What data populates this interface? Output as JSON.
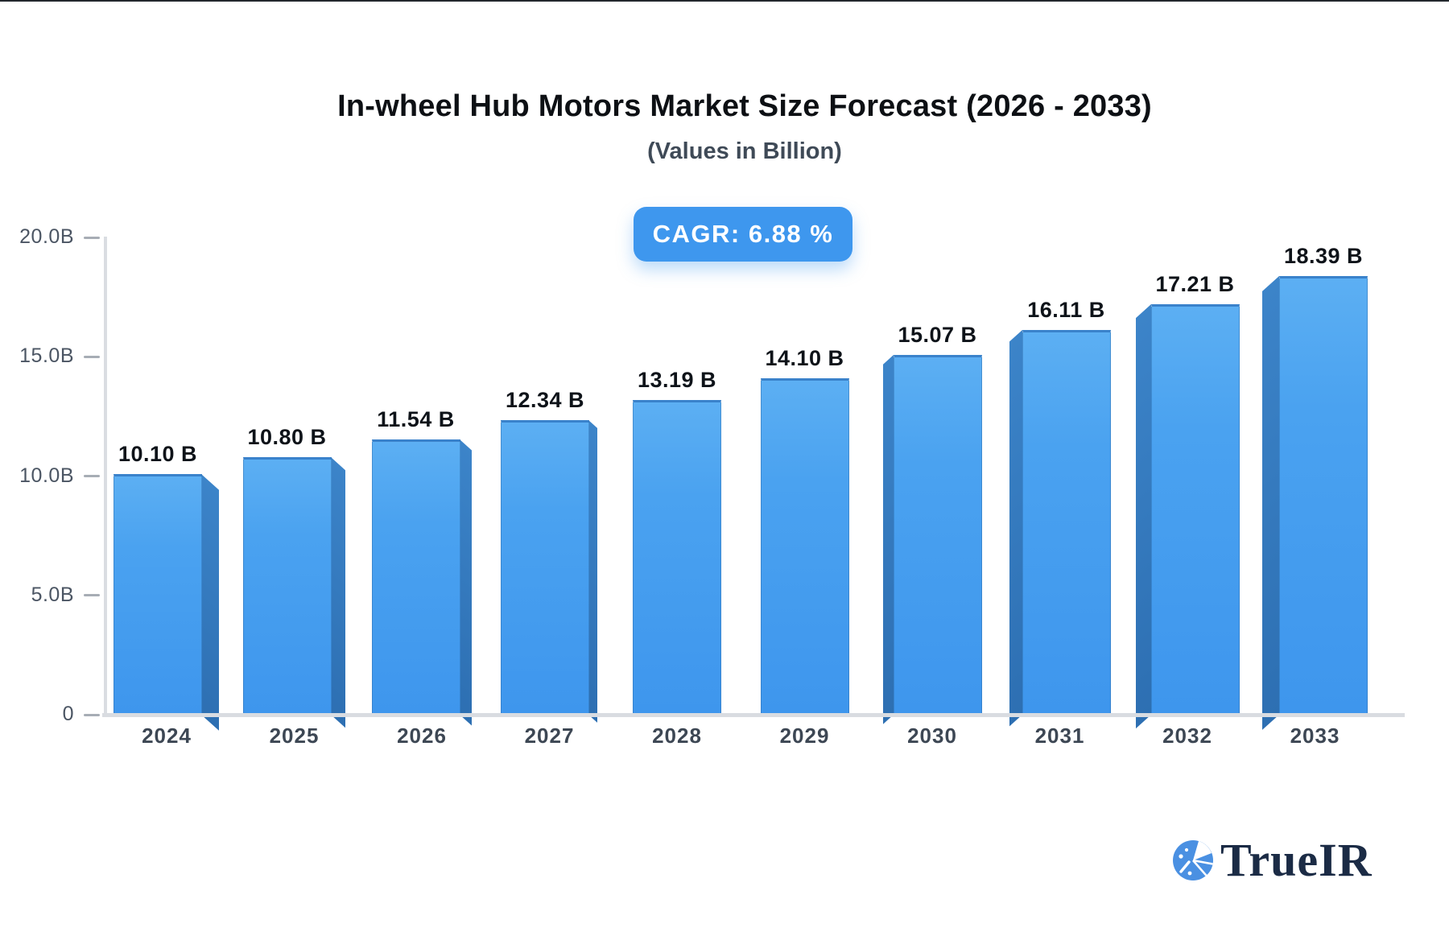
{
  "header": {
    "title": "In-wheel Hub Motors Market Size Forecast (2026 - 2033)",
    "subtitle": "(Values in Billion)",
    "cagr_label": "CAGR: 6.88 %"
  },
  "chart_data": {
    "type": "bar",
    "title": "In-wheel Hub Motors Market Size Forecast (2026 - 2033)",
    "subtitle": "(Values in Billion)",
    "cagr_percent": 6.88,
    "categories": [
      "2024",
      "2025",
      "2026",
      "2027",
      "2028",
      "2029",
      "2030",
      "2031",
      "2032",
      "2033"
    ],
    "values": [
      10.1,
      10.8,
      11.54,
      12.34,
      13.19,
      14.1,
      15.07,
      16.11,
      17.21,
      18.39
    ],
    "bar_labels": [
      "10.10 B",
      "10.80 B",
      "11.54 B",
      "12.34 B",
      "13.19 B",
      "14.10 B",
      "15.07 B",
      "16.11 B",
      "17.21 B",
      "18.39 B"
    ],
    "xlabel": "",
    "ylabel": "",
    "ylim": [
      0,
      20
    ],
    "y_ticks": [
      {
        "value": 20,
        "label": "20.0B"
      },
      {
        "value": 15,
        "label": "15.0B"
      },
      {
        "value": 10,
        "label": "10.0B"
      },
      {
        "value": 5,
        "label": "5.0B"
      },
      {
        "value": 0,
        "label": "0"
      }
    ],
    "grid": false,
    "legend_position": "none"
  },
  "brand": {
    "name": "TrueIR"
  },
  "colors": {
    "accent": "#3e97ee",
    "bar_face_top": "#5caff3",
    "bar_face_bottom": "#3e96ed",
    "bar_side": "#2d6fb2",
    "axis_line": "#dadde2",
    "title_text": "#0d1014",
    "subtitle_text": "#3f4a57",
    "value_text": "#0e1319",
    "tick_text": "#4b5563",
    "brand_navy": "#1b2b45",
    "brand_blue": "#4a90e2",
    "badge_text": "#ffffff"
  }
}
